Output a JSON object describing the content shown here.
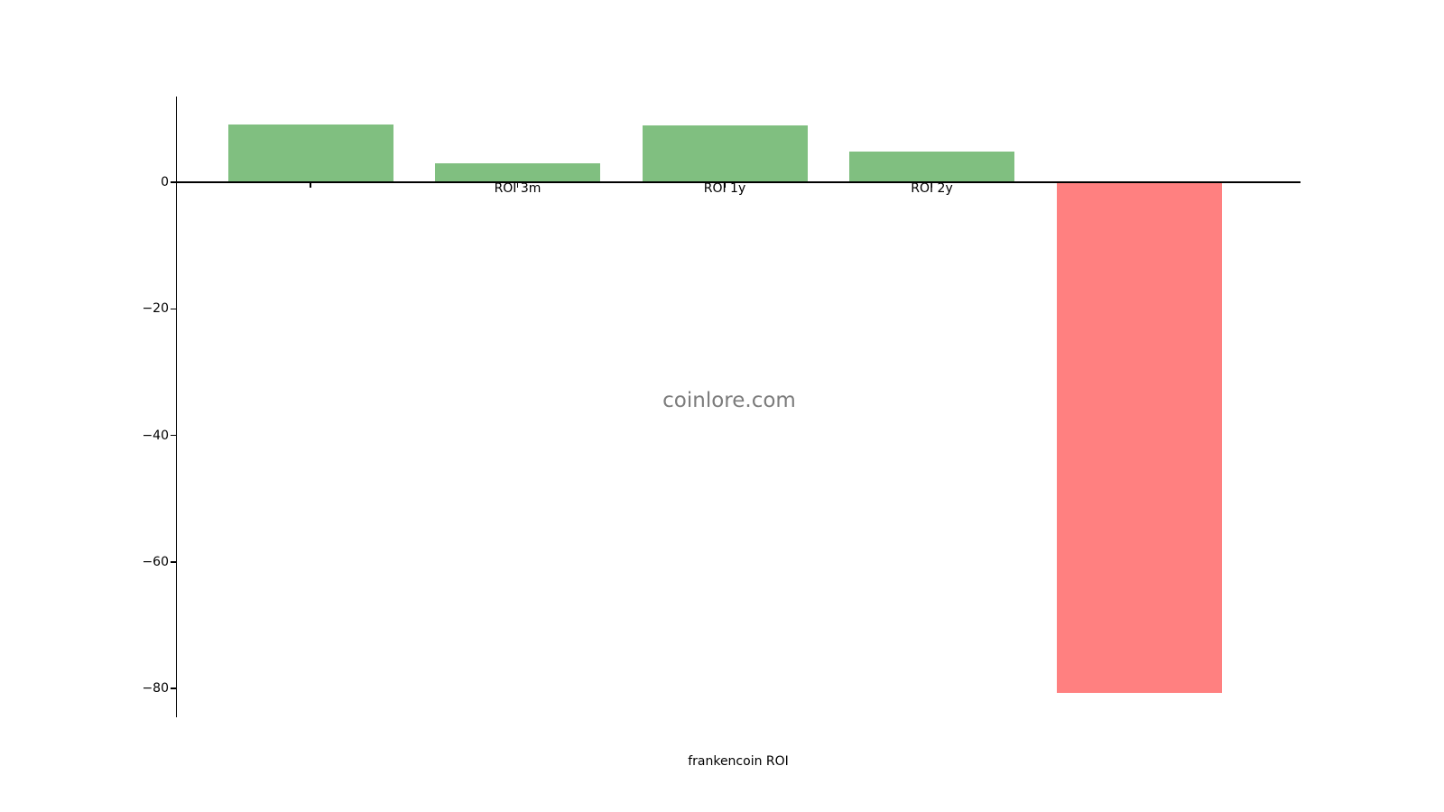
{
  "chart_data": {
    "type": "bar",
    "categories": [
      "",
      "ROI 3m",
      "ROI 1y",
      "ROI 2y",
      ""
    ],
    "values": [
      9.1,
      3.0,
      9.0,
      4.8,
      -80.7
    ],
    "series": [
      {
        "name": "frankencoin ROI",
        "values": [
          9.1,
          3.0,
          9.0,
          4.8,
          -80.7
        ]
      }
    ],
    "title": "",
    "xlabel": "frankencoin ROI",
    "ylabel": "",
    "ylim": [
      -84.6,
      13.55
    ],
    "yticks": [
      0,
      -20,
      -40,
      -60,
      -80
    ],
    "ytick_labels": [
      "0",
      "−20",
      "−40",
      "−60",
      "−80"
    ],
    "grid": false,
    "legend": null,
    "positive_color": "#80bf80",
    "negative_color": "#ff8080",
    "axis_color": "#000000",
    "watermark": "coinlore.com",
    "watermark_color": "#7c7c7c"
  }
}
